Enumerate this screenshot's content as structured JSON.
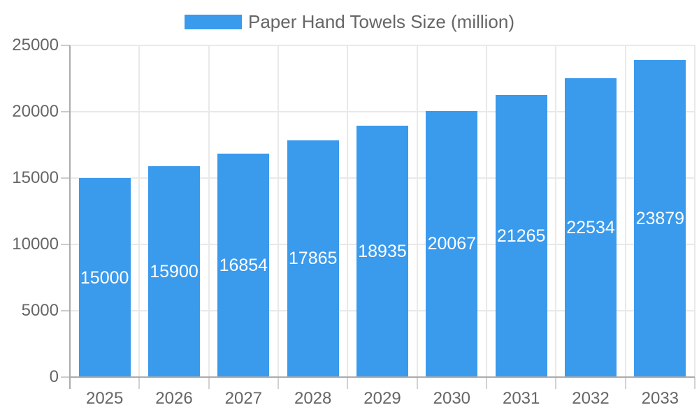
{
  "legend": {
    "label": "Paper Hand Towels Size (million)"
  },
  "colors": {
    "bar": "#3a9aec",
    "bar_label": "#ffffff",
    "axis_text": "#666666",
    "axis_line": "#ababab",
    "gridline": "#e9e9e9",
    "background": "#ffffff"
  },
  "chart_data": {
    "type": "bar",
    "title": "Paper Hand Towels Size (million)",
    "series_name": "Paper Hand Towels Size (million)",
    "categories": [
      "2025",
      "2026",
      "2027",
      "2028",
      "2029",
      "2030",
      "2031",
      "2032",
      "2033"
    ],
    "values": [
      15000,
      15900,
      16854,
      17865,
      18935,
      20067,
      21265,
      22534,
      23879
    ],
    "xlabel": "",
    "ylabel": "",
    "ylim": [
      0,
      25000
    ],
    "y_ticks": [
      0,
      5000,
      10000,
      15000,
      20000,
      25000
    ],
    "grid": true,
    "legend_position": "top",
    "bar_labels": "inside-center-white"
  }
}
